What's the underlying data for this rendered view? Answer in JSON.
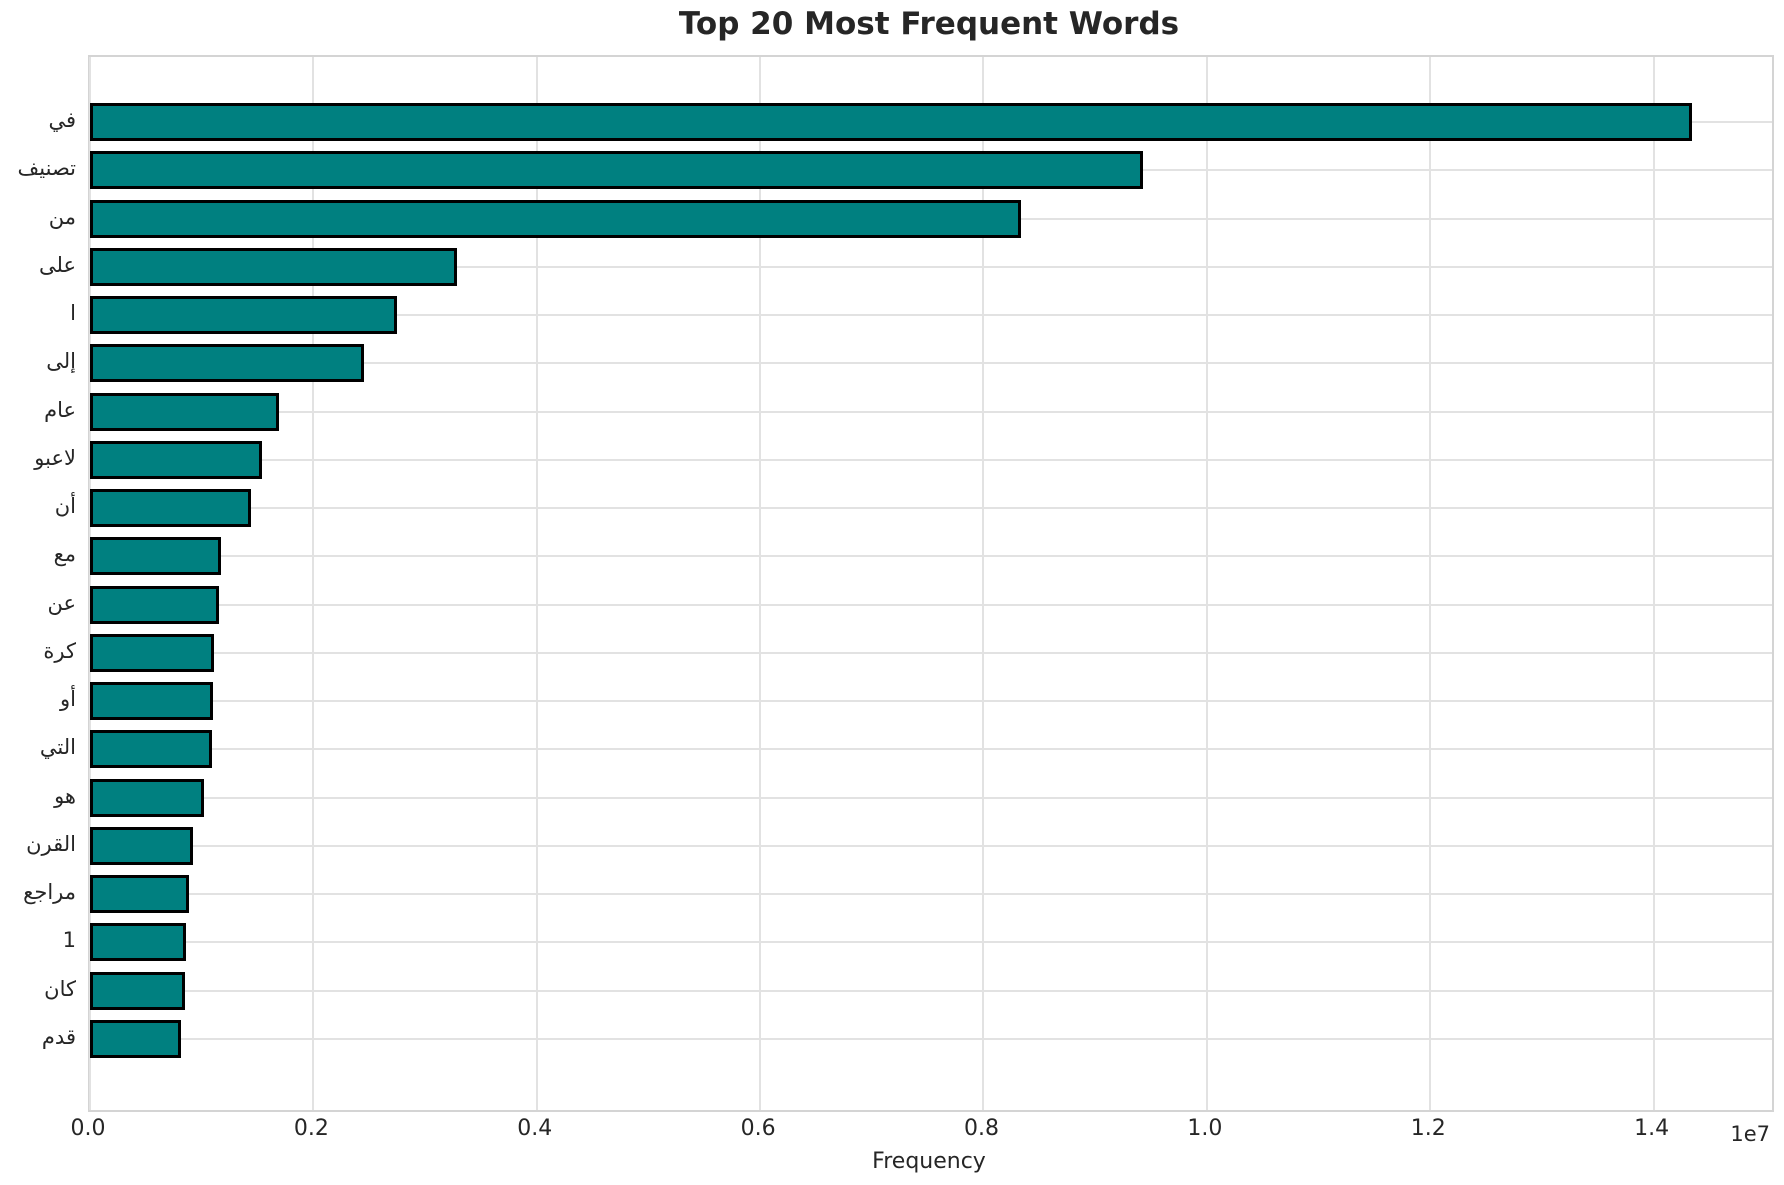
{
  "chart_data": {
    "type": "bar",
    "orientation": "horizontal",
    "title": "Top 20 Most Frequent Words",
    "xlabel": "Frequency",
    "offset_text": "1e7",
    "categories": [
      "في",
      "تصنيف",
      "من",
      "على",
      "ا",
      "إلى",
      "عام",
      "لاعبو",
      "أن",
      "مع",
      "عن",
      "كرة",
      "أو",
      "التي",
      "هو",
      "القرن",
      "مراجع",
      "1",
      "كان",
      "قدم"
    ],
    "values": [
      14340000,
      9430000,
      8340000,
      3290000,
      2750000,
      2450000,
      1690000,
      1540000,
      1440000,
      1175000,
      1155000,
      1110000,
      1105000,
      1090000,
      1020000,
      920000,
      885000,
      862000,
      851000,
      815000
    ],
    "xlim": [
      0,
      15060000
    ],
    "xticks": [
      0,
      2000000,
      4000000,
      6000000,
      8000000,
      10000000,
      12000000,
      14000000
    ],
    "xticklabels": [
      "0.0",
      "0.2",
      "0.4",
      "0.6",
      "0.8",
      "1.0",
      "1.2",
      "1.4"
    ],
    "grid": true,
    "legend": null,
    "bar_color": "#008080",
    "bar_edge_color": "#000000",
    "grid_color": "#e2e2e2",
    "text_color": "#262626"
  }
}
